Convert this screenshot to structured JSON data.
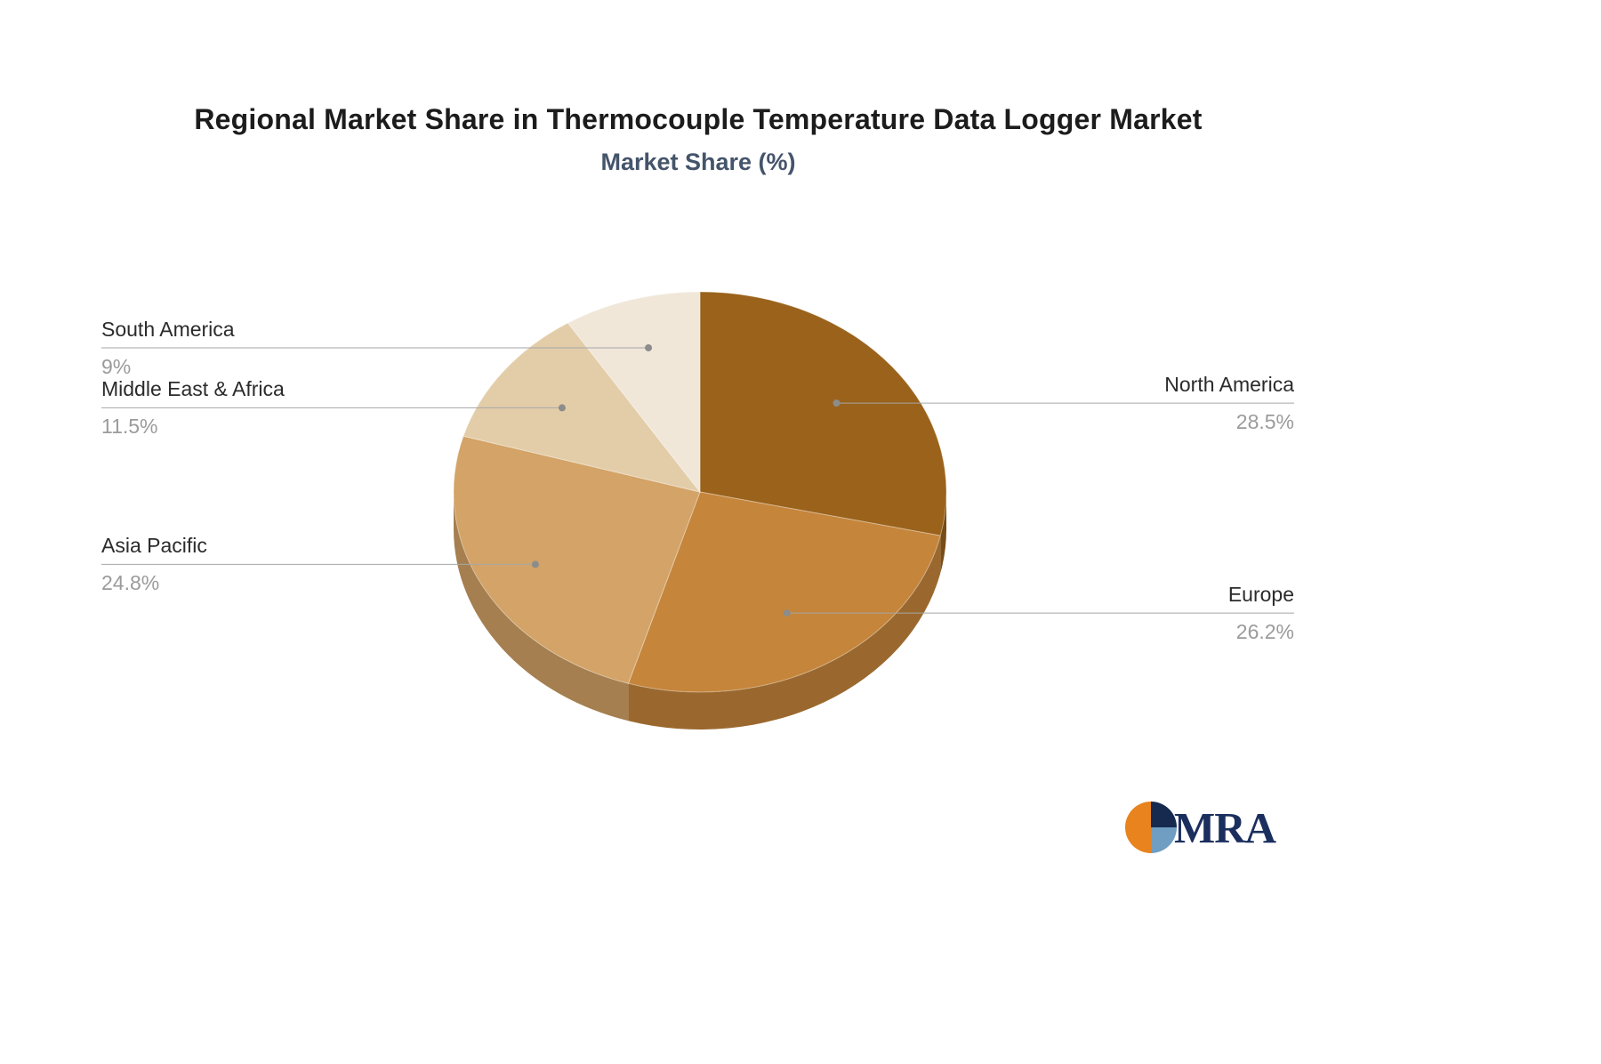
{
  "chart_data": {
    "type": "pie",
    "title": "Regional Market Share in Thermocouple Temperature Data Logger Market",
    "subtitle": "Market Share (%)",
    "unit": "%",
    "labels": [
      "North America",
      "Europe",
      "Asia Pacific",
      "Middle East & Africa",
      "South America"
    ],
    "values": [
      28.5,
      26.2,
      24.8,
      11.5,
      9
    ],
    "value_labels": [
      "28.5%",
      "26.2%",
      "24.8%",
      "11.5%",
      "9%"
    ],
    "colors": [
      "#9a621b",
      "#c5853b",
      "#d3a367",
      "#e3cda9",
      "#f0e7d9"
    ],
    "start_angle_deg": 0,
    "direction": "clockwise",
    "style_3d": true,
    "legend": "none",
    "label_style": {
      "name_color": "#2b2b2b",
      "value_color": "#9b9b9b",
      "connector_color": "#a6a6a6"
    }
  },
  "logo": {
    "text": "MRA",
    "colors": {
      "orange": "#e8831d",
      "navy": "#16294e",
      "blue": "#6f9ec2",
      "text": "#1b2f5e"
    }
  }
}
